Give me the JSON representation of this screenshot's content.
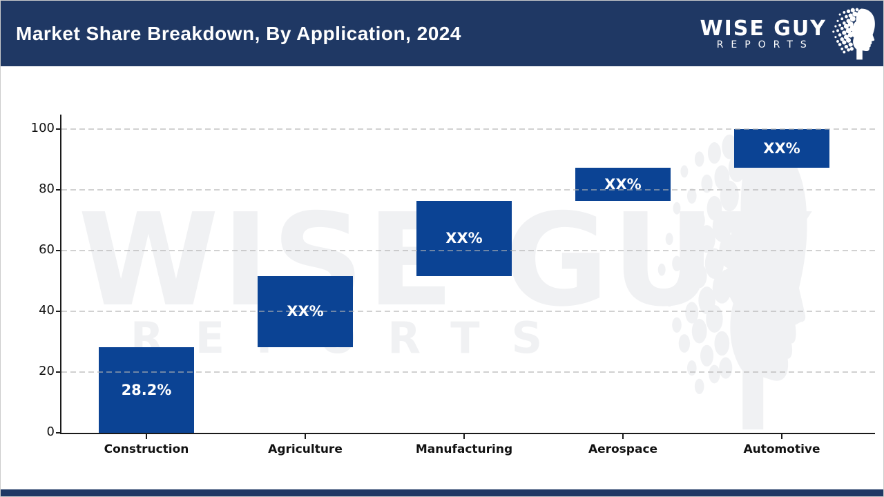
{
  "header": {
    "title": "Market Share Breakdown, By Application, 2024",
    "logo": {
      "line1": "WISE GUY",
      "line2": "REPORTS"
    }
  },
  "watermark": {
    "line1": "WISE GUY",
    "line2": "REPORTS"
  },
  "colors": {
    "header_bg": "#1f3864",
    "footer_bg": "#1f3864",
    "bar": "#0b4394",
    "bar_label": "#ffffff",
    "axis": "#1a1a1a",
    "watermark": "#f0f1f3"
  },
  "chart_data": {
    "type": "bar",
    "subtype": "waterfall",
    "title": "Market Share Breakdown, By Application, 2024",
    "categories": [
      "Construction",
      "Agriculture",
      "Manufacturing",
      "Aerospace",
      "Automotive"
    ],
    "segments": [
      {
        "category": "Construction",
        "start": 0,
        "end": 28.2,
        "label": "28.2%"
      },
      {
        "category": "Agriculture",
        "start": 28.2,
        "end": 51.6,
        "label": "XX%"
      },
      {
        "category": "Manufacturing",
        "start": 51.6,
        "end": 76.4,
        "label": "XX%"
      },
      {
        "category": "Aerospace",
        "start": 76.4,
        "end": 87.2,
        "label": "XX%"
      },
      {
        "category": "Automotive",
        "start": 87.2,
        "end": 100,
        "label": "XX%"
      }
    ],
    "yticks": [
      0,
      20,
      40,
      60,
      80,
      100
    ],
    "ylim": [
      0,
      104
    ],
    "xlabel": "",
    "ylabel": "",
    "legend": "none",
    "grid": "dashed-horizontal"
  }
}
